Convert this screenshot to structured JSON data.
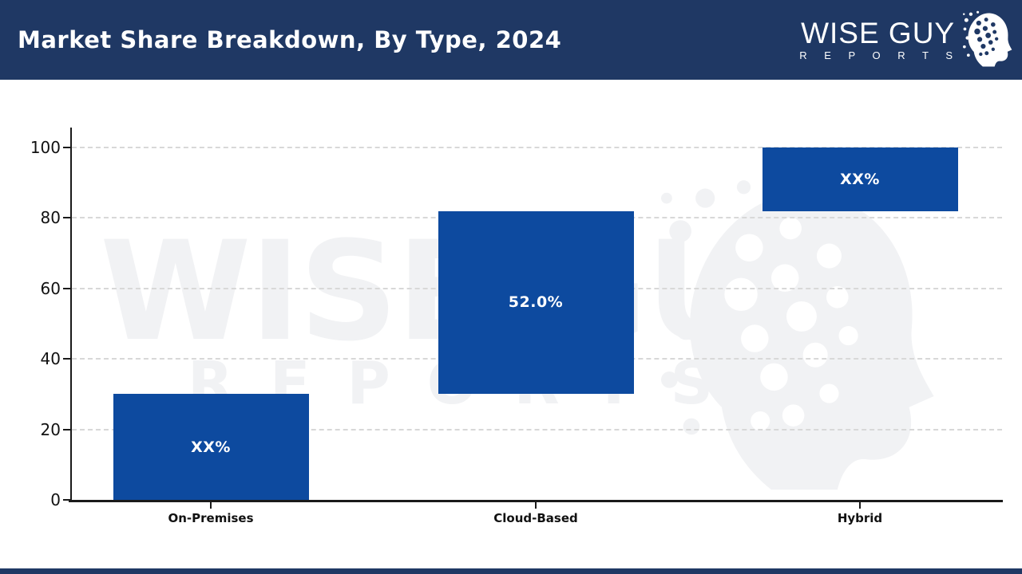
{
  "header": {
    "title": "Market Share Breakdown, By Type, 2024",
    "brand": {
      "name": "WISE GUY",
      "subtitle": "REPORTS"
    }
  },
  "watermark": {
    "line1": "WISE GUY",
    "line2": "REPORTS"
  },
  "chart_data": {
    "type": "bar",
    "subtype": "waterfall",
    "title": "Market Share Breakdown, By Type, 2024",
    "categories": [
      "On-Premises",
      "Cloud-Based",
      "Hybrid"
    ],
    "segments": [
      {
        "category": "On-Premises",
        "start": 0,
        "end": 30,
        "label": "XX%"
      },
      {
        "category": "Cloud-Based",
        "start": 30,
        "end": 82,
        "label": "52.0%"
      },
      {
        "category": "Hybrid",
        "start": 82,
        "end": 100,
        "label": "XX%"
      }
    ],
    "yticks": [
      "0",
      "20",
      "40",
      "60",
      "80",
      "100"
    ],
    "ylim": [
      0,
      100
    ],
    "xlabel": "",
    "ylabel": "",
    "grid": true,
    "legend": "none",
    "bar_color": "#0d4a9f"
  },
  "colors": {
    "header_bg": "#1f3864",
    "footer_bg": "#1f3864",
    "bar": "#0d4a9f",
    "gridline": "#d8d8d8",
    "watermark": "#f1f2f4"
  }
}
